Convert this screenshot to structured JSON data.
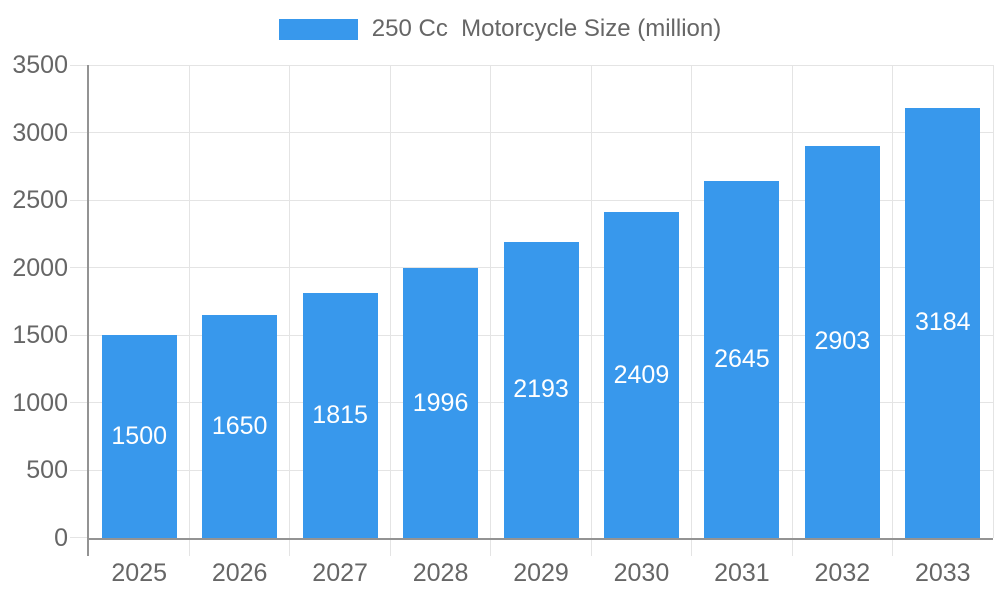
{
  "legend": {
    "label": "250 Cc  Motorcycle Size (million)"
  },
  "chart_data": {
    "type": "bar",
    "title": "250 Cc  Motorcycle Size (million)",
    "series_name": "250 Cc  Motorcycle Size (million)",
    "categories": [
      "2025",
      "2026",
      "2027",
      "2028",
      "2029",
      "2030",
      "2031",
      "2032",
      "2033"
    ],
    "values": [
      1500,
      1650,
      1815,
      1996,
      2193,
      2409,
      2645,
      2903,
      3184
    ],
    "value_labels": "inside-center",
    "xlabel": "",
    "ylabel": "",
    "ylim": [
      0,
      3500
    ],
    "yticks": [
      0,
      500,
      1000,
      1500,
      2000,
      2500,
      3000,
      3500
    ],
    "grid": true,
    "legend_position": "top",
    "colors": {
      "bar": "#3898EC",
      "value_label": "#FFFFFF",
      "axis_text": "#666666",
      "axis_line": "#939393",
      "gridline": "#E4E4E4",
      "background": "#FFFFFF"
    }
  }
}
